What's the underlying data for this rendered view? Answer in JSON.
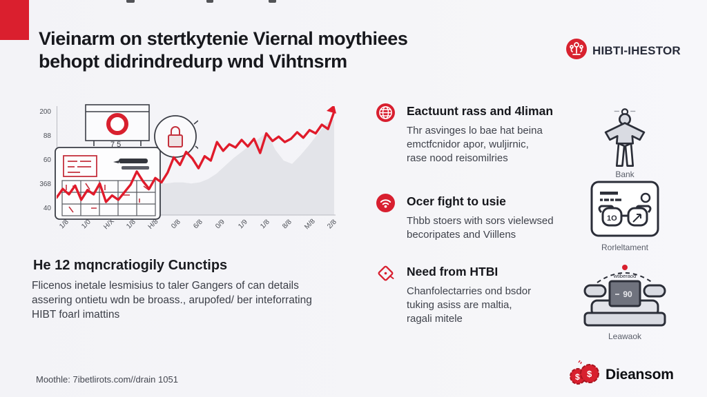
{
  "header": {
    "title": "Vieinarm on stertkytenie Viernal moythiees\nbehopt didrindredurp wnd Vihtnsrm",
    "logo_text": "HIBTI-IHESTOR"
  },
  "chart_data": {
    "type": "line",
    "title": "",
    "xlabel": "",
    "ylabel": "",
    "ylim": [
      0,
      100
    ],
    "grid": false,
    "legend": "none",
    "y_ticks": [
      "200",
      "88",
      "60",
      "368",
      "40"
    ],
    "x_ticks": [
      "1/8",
      "1/0",
      "H/X",
      "1/8",
      "H/8",
      "0/8",
      "6/8",
      "0/9",
      "1/9",
      "1/8",
      "8/8",
      "M/8",
      "2/8"
    ],
    "series": [
      {
        "name": "price-line",
        "color": "#e01b2b",
        "values": [
          16,
          24,
          19,
          27,
          14,
          23,
          19,
          29,
          12,
          18,
          14,
          21,
          28,
          40,
          31,
          24,
          34,
          30,
          39,
          53,
          46,
          58,
          52,
          43,
          54,
          50,
          67,
          59,
          65,
          62,
          69,
          63,
          70,
          57,
          75,
          68,
          72,
          67,
          70,
          76,
          71,
          78,
          75,
          83,
          79,
          95
        ]
      },
      {
        "name": "background-area",
        "color": "#e2e3e8",
        "values": [
          13,
          15,
          17,
          19,
          22,
          26,
          30,
          36,
          42,
          45,
          41,
          34,
          30,
          29,
          30,
          30,
          29,
          30,
          33,
          38,
          45,
          52,
          58,
          64,
          70,
          76,
          60,
          50,
          47,
          55,
          64,
          74,
          84,
          88
        ]
      }
    ]
  },
  "sketch": {
    "numbers": "7  5"
  },
  "section": {
    "heading": "He 12 mqncratiogily Cunctips",
    "body": "Flicenos inetale lesmisius to taler Gangers of can details\nassering ontietu wdn be broass., arupofed/ ber inteforrating\nHIBT foarl imattins"
  },
  "features": [
    {
      "icon": "globe",
      "heading": "Eactuunt rass and 4liman",
      "body": "Thr asvinges lo bae hat beina\nemctfcnidor apor, wuljirnic,\nrase nood reisomilries"
    },
    {
      "icon": "wifi",
      "heading": "Ocer fight to usie",
      "body": "Thbb stoers with sors vielewsed\nbecoripates and Viillens"
    },
    {
      "icon": "diamond",
      "heading": "Need from HTBI",
      "body": "Chanfolectarries ond bsdor\ntuking asiss are maltia,\nragali mitele"
    }
  ],
  "side_icons": [
    {
      "icon": "garment",
      "label": "Bank"
    },
    {
      "icon": "card-reader",
      "label": "Rorleltament",
      "lens_text": "1O"
    },
    {
      "icon": "vehicle",
      "label": "Leawaok",
      "screen_text": "90",
      "arc_text": "wtiberaod"
    }
  ],
  "footer": {
    "url": "Moothle: 7ibetlirots.com//drain 1051",
    "logo_text": "Dieansom",
    "coin_symbol": "$"
  },
  "colors": {
    "accent": "#da1f2e",
    "line": "#e01b2b",
    "area_fill": "#e2e3e8",
    "icon_stroke": "#2b2e38",
    "icon_fill": "#d9dbe2"
  }
}
